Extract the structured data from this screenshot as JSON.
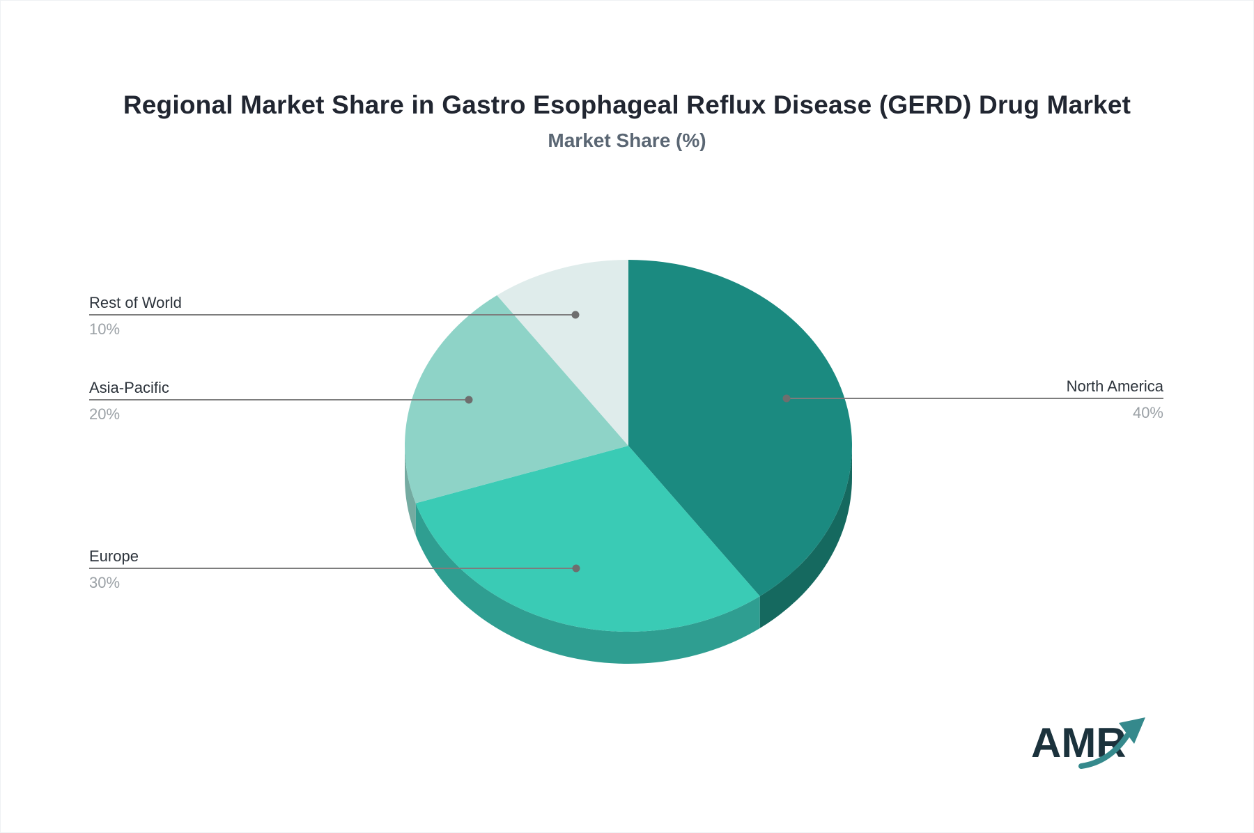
{
  "header": {
    "title": "Regional Market Share in Gastro Esophageal Reflux Disease (GERD) Drug Market",
    "subtitle": "Market Share (%)"
  },
  "chart_data": {
    "type": "pie",
    "title": "Regional Market Share in Gastro Esophageal Reflux Disease (GERD) Drug Market",
    "subtitle": "Market Share (%)",
    "unit": "%",
    "effect": "3d",
    "direction": "clockwise",
    "start_angle_deg": 0,
    "labels": [
      "North America",
      "Europe",
      "Asia-Pacific",
      "Rest of World"
    ],
    "values": [
      40,
      30,
      20,
      10
    ],
    "display_values": [
      "40%",
      "30%",
      "20%",
      "10%"
    ],
    "colors": [
      "#1b8a80",
      "#3acbb5",
      "#8ed3c7",
      "#dfeceb"
    ],
    "side_colors": [
      "#15695f",
      "#2f9e91",
      "#74aba1",
      "#c9dbd8"
    ],
    "legend_position": "callout-labels",
    "callouts": [
      {
        "label": "North America",
        "value": "40%",
        "side": "right"
      },
      {
        "label": "Europe",
        "value": "30%",
        "side": "left"
      },
      {
        "label": "Asia-Pacific",
        "value": "20%",
        "side": "left"
      },
      {
        "label": "Rest of World",
        "value": "10%",
        "side": "left"
      }
    ]
  },
  "styles": {
    "leader_line_color": "#7d7d7d",
    "leader_dot_color": "#6e6e6e",
    "title_color": "#212631",
    "subtitle_color": "#5a6673",
    "label_color": "#2c333b",
    "value_color": "#9ba1a6"
  },
  "logo": {
    "text": "AMR",
    "text_color": "#1b323c",
    "arrow_color": "#35898c"
  }
}
